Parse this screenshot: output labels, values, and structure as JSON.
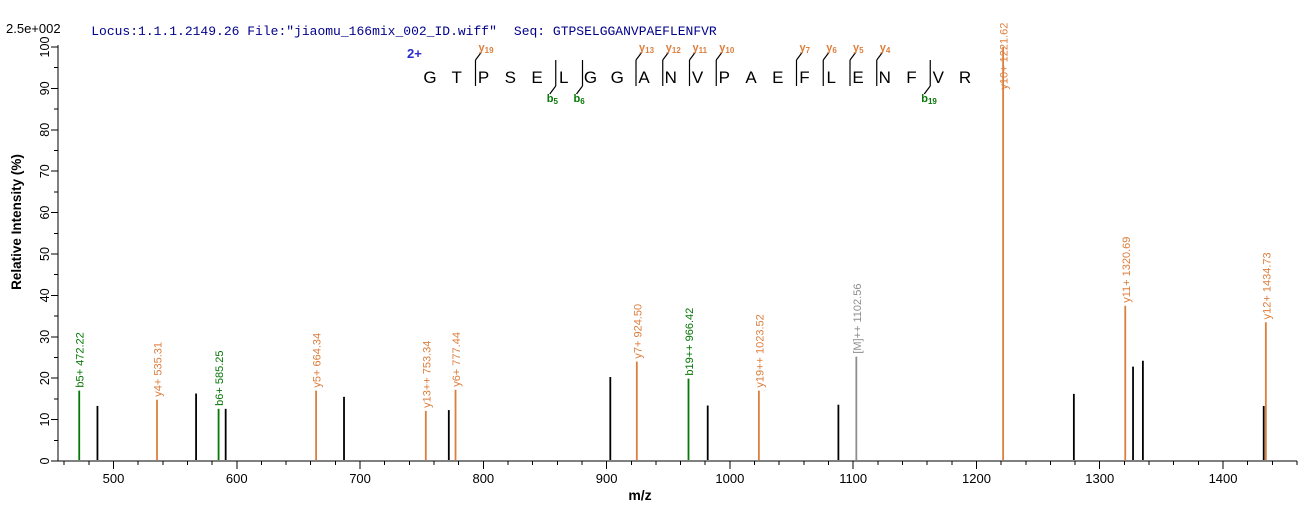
{
  "header": {
    "locus_file": "Locus:1.1.1.2149.26 File:\"jiaomu_166mix_002_ID.wiff\"",
    "seq": "Seq: GTPSELGGANVPAEFLENFVR"
  },
  "y_scale_label": "2.5e+002",
  "colors": {
    "y_ion": "#DC7E3D",
    "b_ion": "#067806",
    "precursor": "#8E8E8E",
    "unassigned": "#000000",
    "header_text": "#00008B",
    "charge_label": "#2B2BD0",
    "axis": "#000000"
  },
  "sequence_annotation": {
    "charge_label": "2+",
    "residues": [
      "G",
      "T",
      "P",
      "S",
      "E",
      "L",
      "G",
      "G",
      "A",
      "N",
      "V",
      "P",
      "A",
      "E",
      "F",
      "L",
      "E",
      "N",
      "F",
      "V",
      "R"
    ],
    "markers": [
      {
        "ion": "y",
        "num": "19",
        "type": "y",
        "before": 3
      },
      {
        "ion": "b",
        "num": "5",
        "type": "b",
        "before": 6
      },
      {
        "ion": "b",
        "num": "6",
        "type": "b",
        "before": 7
      },
      {
        "ion": "y",
        "num": "13",
        "type": "y",
        "before": 9
      },
      {
        "ion": "y",
        "num": "12",
        "type": "y",
        "before": 10
      },
      {
        "ion": "y",
        "num": "11",
        "type": "y",
        "before": 11
      },
      {
        "ion": "y",
        "num": "10",
        "type": "y",
        "before": 12
      },
      {
        "ion": "y",
        "num": "7",
        "type": "y",
        "before": 15
      },
      {
        "ion": "y",
        "num": "6",
        "type": "y",
        "before": 16
      },
      {
        "ion": "y",
        "num": "5",
        "type": "y",
        "before": 17
      },
      {
        "ion": "y",
        "num": "4",
        "type": "y",
        "before": 18
      },
      {
        "ion": "b",
        "num": "19",
        "type": "b",
        "before": 20
      }
    ]
  },
  "chart_data": {
    "type": "bar",
    "subtype": "ms2-stick-spectrum",
    "title": "",
    "xlabel": "m/z",
    "ylabel": "Relative Intensity (%)",
    "xlim": [
      455,
      1460
    ],
    "ylim": [
      0,
      100
    ],
    "x_major_ticks": [
      500,
      600,
      700,
      800,
      900,
      1000,
      1100,
      1200,
      1300,
      1400
    ],
    "x_minor_tick_step": 20,
    "y_major_ticks": [
      0,
      10,
      20,
      30,
      40,
      50,
      60,
      70,
      80,
      90,
      100
    ],
    "y_minor_tick_step": 5,
    "grid": false,
    "legend": false,
    "peaks": [
      {
        "mz": 472.22,
        "intensity": 17.0,
        "type": "b",
        "label": "b5+ 472.22"
      },
      {
        "mz": 487.0,
        "intensity": 13.3,
        "type": "unassigned",
        "label": ""
      },
      {
        "mz": 535.31,
        "intensity": 14.8,
        "type": "y",
        "label": "y4+ 535.31"
      },
      {
        "mz": 567.0,
        "intensity": 16.3,
        "type": "unassigned",
        "label": ""
      },
      {
        "mz": 585.25,
        "intensity": 12.6,
        "type": "b",
        "label": "b6+ 585.25"
      },
      {
        "mz": 591.0,
        "intensity": 12.6,
        "type": "unassigned",
        "label": ""
      },
      {
        "mz": 664.34,
        "intensity": 17.0,
        "type": "y",
        "label": "y5+ 664.34"
      },
      {
        "mz": 687.0,
        "intensity": 15.5,
        "type": "unassigned",
        "label": ""
      },
      {
        "mz": 753.34,
        "intensity": 12.1,
        "type": "y",
        "label": "y13++ 753.34"
      },
      {
        "mz": 772.0,
        "intensity": 12.3,
        "type": "unassigned",
        "label": ""
      },
      {
        "mz": 777.44,
        "intensity": 17.2,
        "type": "y",
        "label": "y6+ 777.44"
      },
      {
        "mz": 903.0,
        "intensity": 20.3,
        "type": "unassigned",
        "label": ""
      },
      {
        "mz": 924.5,
        "intensity": 24.0,
        "type": "y",
        "label": "y7+ 924.50"
      },
      {
        "mz": 966.42,
        "intensity": 19.9,
        "type": "b",
        "label": "b19++ 966.42"
      },
      {
        "mz": 982.0,
        "intensity": 13.4,
        "type": "unassigned",
        "label": ""
      },
      {
        "mz": 1023.52,
        "intensity": 17.0,
        "type": "y",
        "label": "y19++ 1023.52"
      },
      {
        "mz": 1088.0,
        "intensity": 13.6,
        "type": "unassigned",
        "label": ""
      },
      {
        "mz": 1102.56,
        "intensity": 25.2,
        "type": "precursor",
        "label": "[M]++ 1102.56"
      },
      {
        "mz": 1221.62,
        "intensity": 100.0,
        "type": "y",
        "label": "y10+ 1221.62"
      },
      {
        "mz": 1279.0,
        "intensity": 16.2,
        "type": "unassigned",
        "label": ""
      },
      {
        "mz": 1320.69,
        "intensity": 37.5,
        "type": "y",
        "label": "y11+ 1320.69"
      },
      {
        "mz": 1327.0,
        "intensity": 22.8,
        "type": "unassigned",
        "label": ""
      },
      {
        "mz": 1335.0,
        "intensity": 24.2,
        "type": "unassigned",
        "label": ""
      },
      {
        "mz": 1433.0,
        "intensity": 13.3,
        "type": "unassigned",
        "label": ""
      },
      {
        "mz": 1434.73,
        "intensity": 33.5,
        "type": "y",
        "label": "y12+ 1434.73"
      }
    ]
  }
}
